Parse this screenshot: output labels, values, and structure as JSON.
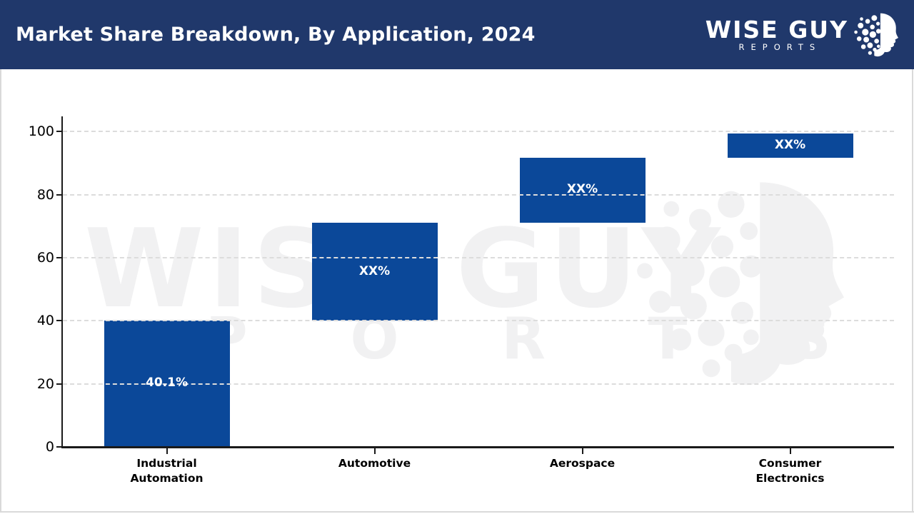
{
  "header": {
    "title": "Market Share Breakdown, By Application, 2024",
    "bg_color": "#20386B",
    "logo": {
      "name": "Wise Guy Reports",
      "line1": "WISE GUY",
      "line2": "REPORTS"
    }
  },
  "watermark": {
    "line1": "WISE GUY",
    "line2": "P O R T S"
  },
  "chart_data": {
    "type": "bar",
    "variant": "waterfall",
    "title": "Market Share Breakdown, By Application, 2024",
    "categories": [
      "Industrial Automation",
      "Automotive",
      "Aerospace",
      "Consumer Electronics"
    ],
    "segments": [
      {
        "category": "Industrial Automation",
        "display": "Industrial\nAutomation",
        "start": 0,
        "end": 40.1,
        "label": "40.1%"
      },
      {
        "category": "Automotive",
        "display": "Automotive",
        "start": 40.1,
        "end": 71.0,
        "label": "XX%"
      },
      {
        "category": "Aerospace",
        "display": "Aerospace",
        "start": 71.0,
        "end": 91.8,
        "label": "XX%"
      },
      {
        "category": "Consumer Electronics",
        "display": "Consumer\nElectronics",
        "start": 91.8,
        "end": 99.4,
        "label": "XX%"
      }
    ],
    "xlabel": "",
    "ylabel": "",
    "y_ticks": [
      0,
      20,
      40,
      60,
      80,
      100
    ],
    "ylim": [
      0,
      104.8
    ],
    "bar_color": "#0B4899",
    "bar_label_color": "#FFFFFF",
    "grid": {
      "axis": "y",
      "style": "dashed",
      "color": "#DCDCDC",
      "above_bars": true
    },
    "legend": "none"
  }
}
